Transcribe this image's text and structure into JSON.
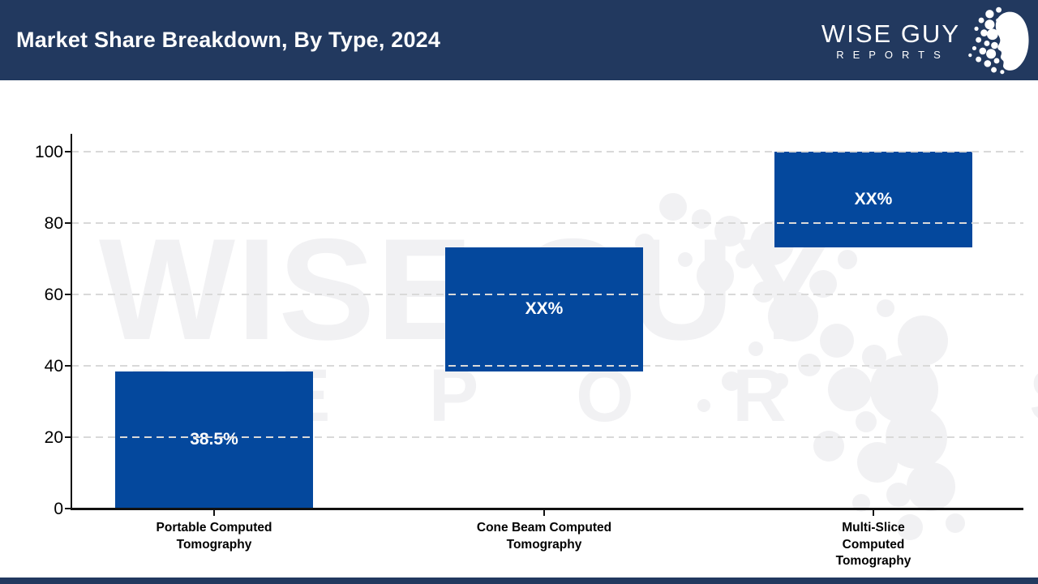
{
  "header": {
    "title": "Market Share Breakdown, By Type, 2024",
    "logo": {
      "line1": "WISE GUY",
      "line2": "REPORTS"
    }
  },
  "watermark": {
    "line1": "WISE GUY",
    "line2": "R E P O R T S"
  },
  "colors": {
    "header_navy": "#22395F",
    "bar_blue": "#04489D",
    "gridline": "#D9D9D9",
    "watermark_gray": "#F1F1F3",
    "title_text": "#FFFFFF",
    "axis_text": "#000000",
    "bar_label_text": "#FFFFFF"
  },
  "chart_data": {
    "type": "bar",
    "subtype": "stacked-waterfall-segments",
    "title": "Market Share Breakdown, By Type, 2024",
    "xlabel": "",
    "ylabel": "",
    "ylim": [
      0,
      105
    ],
    "yticks": [
      "0",
      "20",
      "40",
      "60",
      "80",
      "100"
    ],
    "ytick_values": [
      0,
      20,
      40,
      60,
      80,
      100
    ],
    "grid": "dashed-horizontal",
    "legend": "none",
    "categories": [
      "Portable Computed Tomography",
      "Cone Beam Computed Tomography",
      "Multi-Slice Computed Tomography"
    ],
    "segments": [
      {
        "category_lines": [
          "Portable Computed",
          "Tomography"
        ],
        "start": 0,
        "end": 38.5,
        "value_estimate": 38.5,
        "label": "38.5%"
      },
      {
        "category_lines": [
          "Cone Beam Computed",
          "Tomography"
        ],
        "start": 38.5,
        "end": 73.1,
        "value_estimate": 34.6,
        "label": "XX%"
      },
      {
        "category_lines": [
          "Multi-Slice",
          "Computed",
          "Tomography"
        ],
        "start": 73.1,
        "end": 100,
        "value_estimate": 26.9,
        "label": "XX%"
      }
    ]
  }
}
